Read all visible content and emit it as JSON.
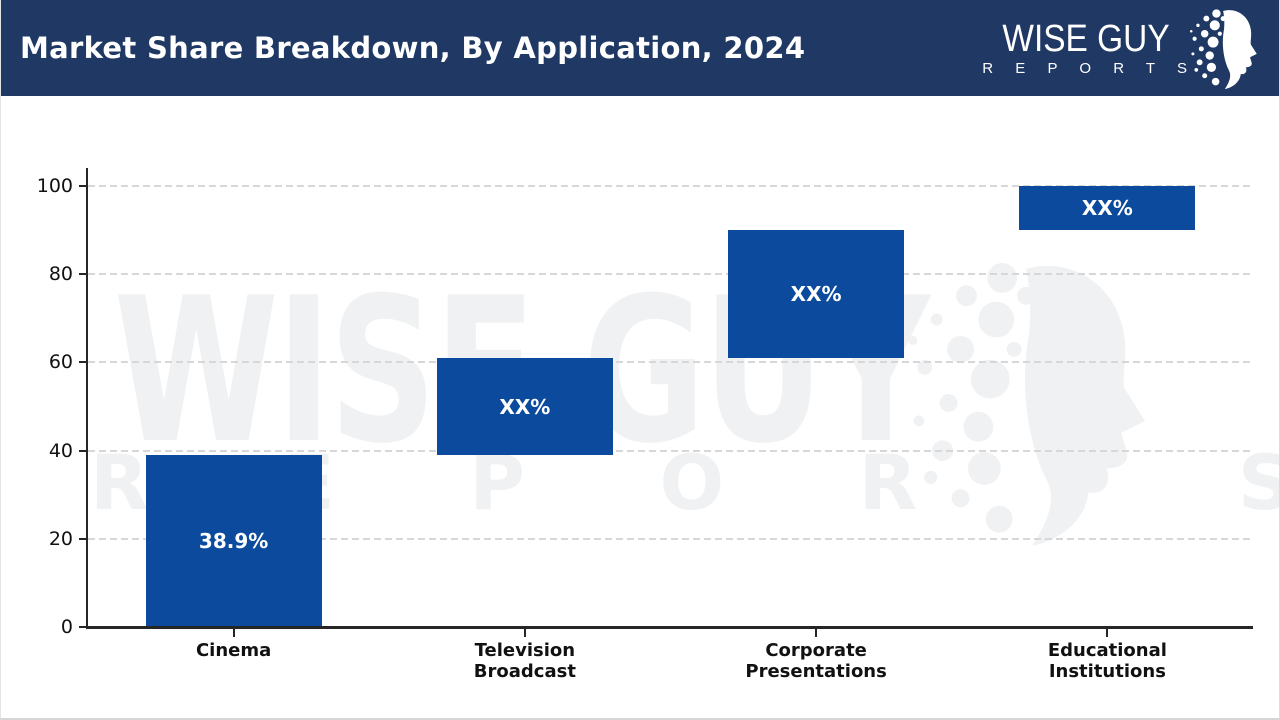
{
  "header": {
    "title": "Market Share Breakdown, By Application, 2024",
    "logo": {
      "name": "WISE GUY",
      "sub": "R E P O R T S"
    }
  },
  "watermark": {
    "line1": "WISE GUY",
    "line2": "R E P O R T S"
  },
  "colors": {
    "header_bg": "#1f3864",
    "bar": "#0c4a9e",
    "axis": "#262626",
    "grid": "#d7d7d7",
    "watermark": "#f0f1f3"
  },
  "chart_data": {
    "type": "bar",
    "subtype": "floating-waterfall-segments",
    "title": "Market Share Breakdown, By Application, 2024",
    "categories": [
      "Cinema",
      "Television Broadcast",
      "Corporate Presentations",
      "Educational Institutions"
    ],
    "category_tick_lines": [
      [
        "Cinema"
      ],
      [
        "Television",
        "Broadcast"
      ],
      [
        "Corporate",
        "Presentations"
      ],
      [
        "Educational",
        "Institutions"
      ]
    ],
    "segments": [
      {
        "category": "Cinema",
        "start": 0,
        "end": 38.9,
        "label": "38.9%"
      },
      {
        "category": "Television Broadcast",
        "start": 38.9,
        "end": 61,
        "label": "XX%"
      },
      {
        "category": "Corporate Presentations",
        "start": 61,
        "end": 90,
        "label": "XX%"
      },
      {
        "category": "Educational Institutions",
        "start": 90,
        "end": 100,
        "label": "XX%"
      }
    ],
    "ylim": [
      0,
      100
    ],
    "y_ticks": [
      0,
      20,
      40,
      60,
      80,
      100
    ],
    "grid": "horizontal-dashed",
    "legend": "none",
    "bar_color": "#0c4a9e",
    "value_label_color": "#ffffff"
  }
}
